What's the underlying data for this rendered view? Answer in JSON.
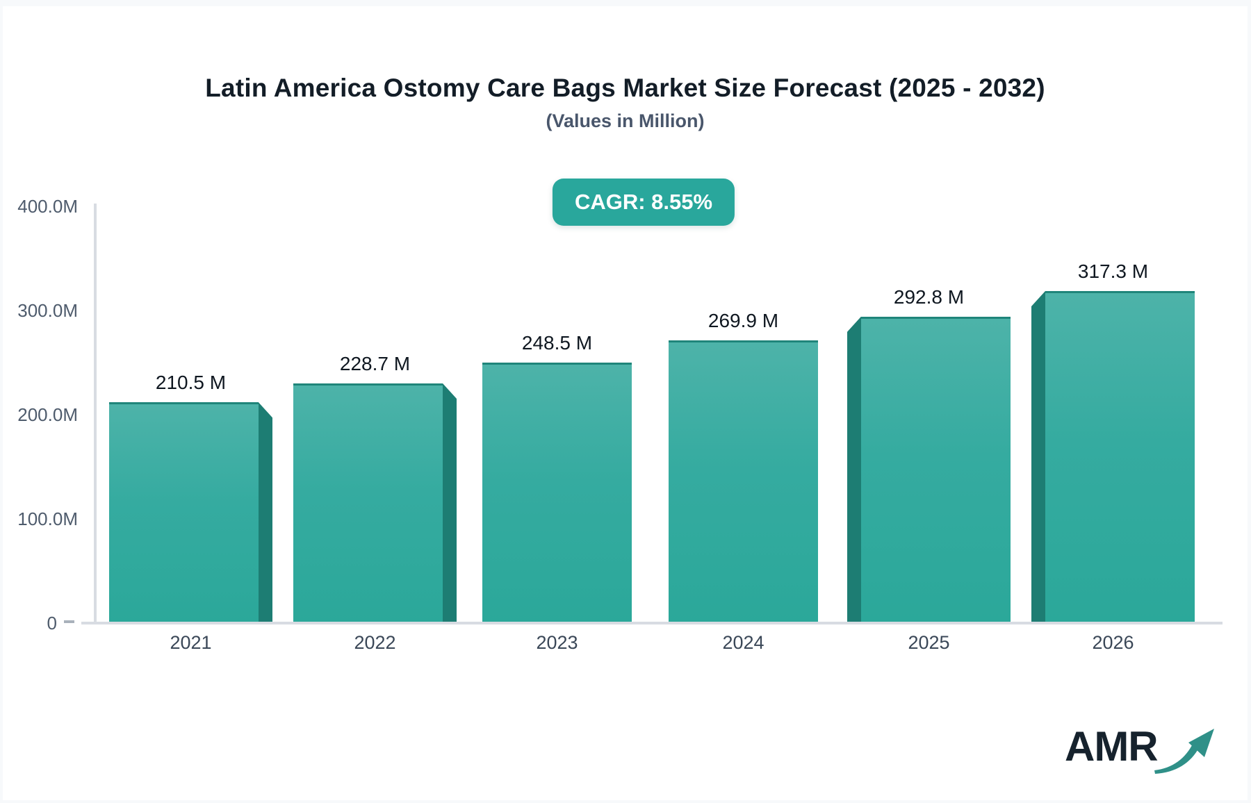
{
  "header": {
    "title": "Latin America Ostomy Care Bags Market Size Forecast (2025 - 2032)",
    "subtitle": "(Values in Million)"
  },
  "badge": {
    "label": "CAGR: 8.55%",
    "background": "#29a79c",
    "text_color": "#ffffff"
  },
  "chart_data": {
    "type": "bar",
    "title": "Latin America Ostomy Care Bags Market Size Forecast (2025 - 2032)",
    "subtitle": "(Values in Million)",
    "unit": "Million",
    "cagr": "8.55%",
    "categories": [
      "2021",
      "2022",
      "2023",
      "2024",
      "2025",
      "2026"
    ],
    "values": [
      210.5,
      228.7,
      248.5,
      269.9,
      292.8,
      317.3
    ],
    "value_labels": [
      "210.5 M",
      "228.7 M",
      "248.5 M",
      "269.9 M",
      "292.8 M",
      "317.3 M"
    ],
    "y_axis": {
      "range": [
        0,
        400
      ],
      "ticks": [
        {
          "value": 400,
          "label": "400.0M"
        },
        {
          "value": 300,
          "label": "300.0M"
        },
        {
          "value": 200,
          "label": "200.0M"
        },
        {
          "value": 100,
          "label": "100.0M"
        },
        {
          "value": 0,
          "label": "0"
        }
      ]
    },
    "grid": "off",
    "legend": "none",
    "bar_style": {
      "fill_top": "#4db3a9",
      "fill_bottom": "#2ba89a",
      "side_fill": "#1d7d73",
      "top_edge": "#1f857a"
    }
  },
  "brand": {
    "logo_text": "AMR",
    "logo_color": "#16222d",
    "arrow_icon": "trend-up-arrow",
    "arrow_color": "#2f9088"
  }
}
